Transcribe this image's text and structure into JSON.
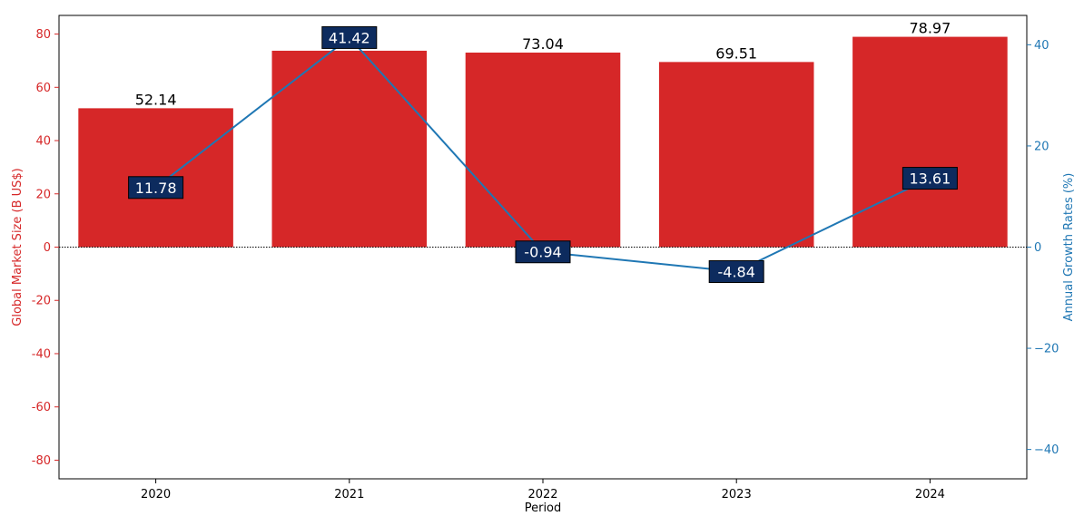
{
  "chart_data": {
    "type": "bar",
    "categories": [
      "2020",
      "2021",
      "2022",
      "2023",
      "2024"
    ],
    "xlabel": "Period",
    "ylabel_left": "Global Market Size (B US$)",
    "ylabel_right": "Annual Growth Rates (%)",
    "ylim_left": [
      -87,
      87
    ],
    "ylim_right": [
      -45.8,
      45.8
    ],
    "yticks_left": [
      -80,
      -60,
      -40,
      -20,
      0,
      20,
      40,
      60,
      80
    ],
    "yticks_right": [
      -40,
      -20,
      0,
      20,
      40
    ],
    "series": [
      {
        "kind": "bar",
        "axis": "left",
        "color": "#d62728",
        "values": [
          52.14,
          73.74,
          73.04,
          69.51,
          78.97
        ],
        "labels": [
          "52.14",
          "73.74",
          "73.04",
          "69.51",
          "78.97"
        ]
      },
      {
        "kind": "line",
        "axis": "right",
        "color": "#1f77b4",
        "values": [
          11.78,
          41.42,
          -0.94,
          -4.84,
          13.61
        ],
        "labels": [
          "11.78",
          "41.42",
          "-0.94",
          "-4.84",
          "13.61"
        ]
      }
    ],
    "left_axis_color": "#d62728",
    "right_axis_color": "#1f77b4",
    "badge_color": "#0d2b5e",
    "zero_line": "dotted",
    "grid": false
  }
}
